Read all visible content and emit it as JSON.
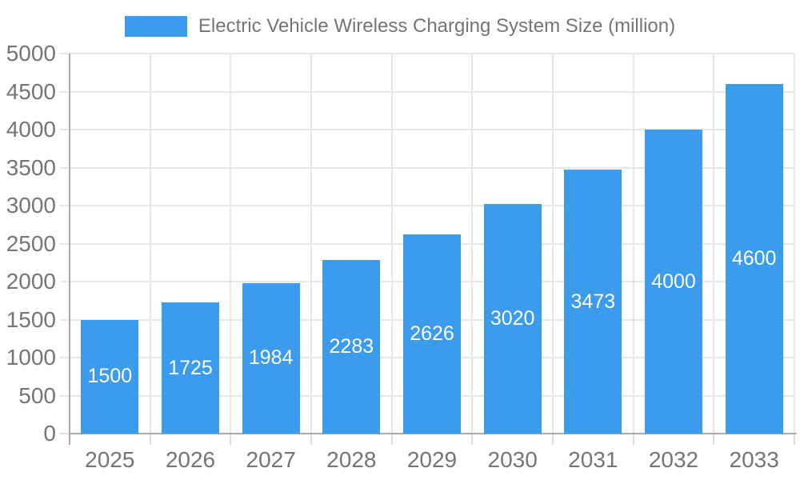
{
  "chart_data": {
    "type": "bar",
    "title": "Electric Vehicle Wireless Charging System Size (million)",
    "categories": [
      "2025",
      "2026",
      "2027",
      "2028",
      "2029",
      "2030",
      "2031",
      "2032",
      "2033"
    ],
    "values": [
      1500,
      1725,
      1984,
      2283,
      2626,
      3020,
      3473,
      4000,
      4600
    ],
    "xlabel": "",
    "ylabel": "",
    "ylim": [
      0,
      5000
    ],
    "ytick_interval": 500,
    "ytick_labels": [
      "0",
      "500",
      "1000",
      "1500",
      "2000",
      "2500",
      "3000",
      "3500",
      "4000",
      "4500",
      "5000"
    ],
    "grid": "horizontal-and-vertical",
    "legend_position": "top-center",
    "value_label_position": "inside-center",
    "colors": {
      "bar": "#3b9bec",
      "value_label": "#ffffff",
      "axis_text": "#757575",
      "axis_line": "#aaaaaa",
      "gridline": "#e7e7e7",
      "tick": "#dddddd",
      "background": "#ffffff"
    }
  }
}
